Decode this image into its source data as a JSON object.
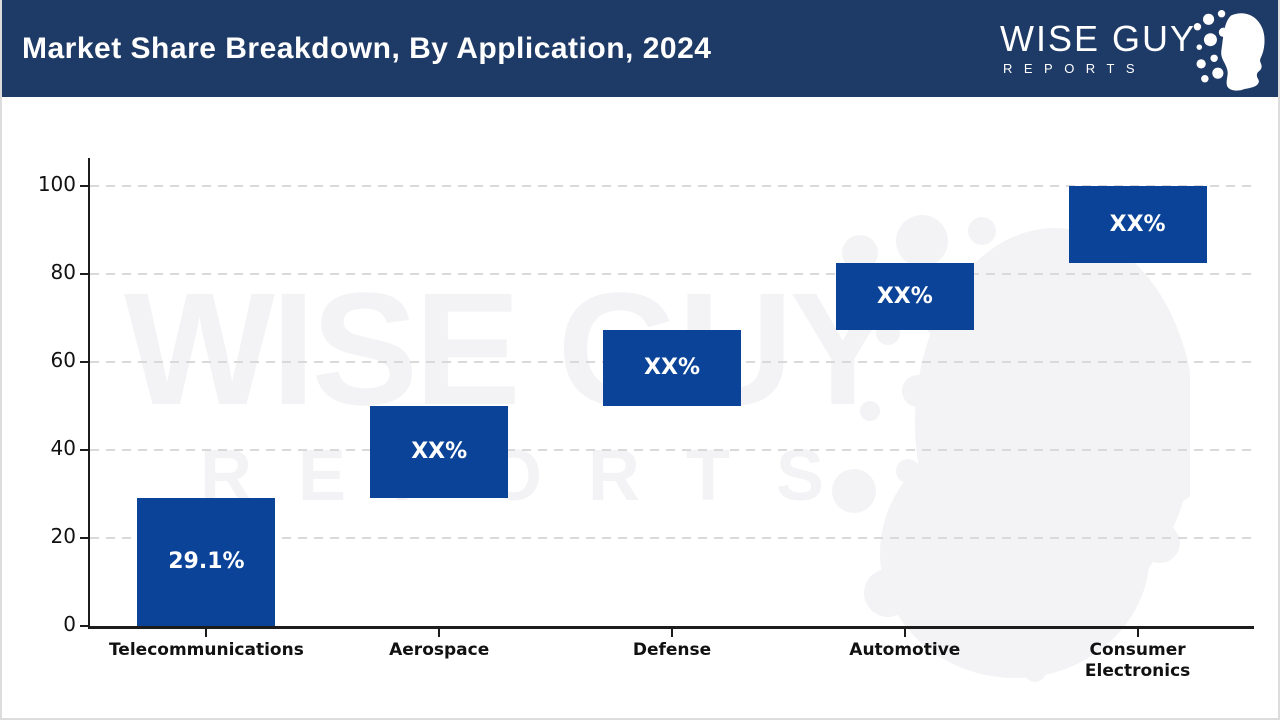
{
  "page": {
    "background": "#ffffff",
    "border_color": "#dcdcdc"
  },
  "header": {
    "title": "Market Share Breakdown, By Application, 2024",
    "bg_color": "#1e3a66",
    "text_color": "#ffffff",
    "logo": {
      "line1": "WISE GUY",
      "line2": "REPORTS",
      "icon": "dotted-face-profile"
    }
  },
  "watermark": {
    "line1": "WISE GUY",
    "line2": "REPORTS",
    "color": "#f3f3f5"
  },
  "chart_data": {
    "type": "bar",
    "subtype": "waterfall",
    "title": "",
    "xlabel": "",
    "ylabel": "",
    "categories": [
      "Telecommunications",
      "Aerospace",
      "Defense",
      "Automotive",
      "Consumer Electronics"
    ],
    "segments": [
      {
        "category": "Telecommunications",
        "start": 0,
        "end": 29.1,
        "label": "29.1%"
      },
      {
        "category": "Aerospace",
        "start": 29.1,
        "end": 50.0,
        "label": "XX%"
      },
      {
        "category": "Defense",
        "start": 50.0,
        "end": 67.3,
        "label": "XX%"
      },
      {
        "category": "Automotive",
        "start": 67.3,
        "end": 82.5,
        "label": "XX%"
      },
      {
        "category": "Consumer Electronics",
        "start": 82.5,
        "end": 100.0,
        "label": "XX%"
      }
    ],
    "yticks": [
      0,
      20,
      40,
      60,
      80,
      100
    ],
    "ylim": [
      0,
      106
    ],
    "grid": "horizontal dashed",
    "legend": "none",
    "bar_color": "#0a4397",
    "bar_label_color": "#ffffff",
    "axis_color": "#1c1c1c",
    "grid_color": "#d9d9d9"
  }
}
